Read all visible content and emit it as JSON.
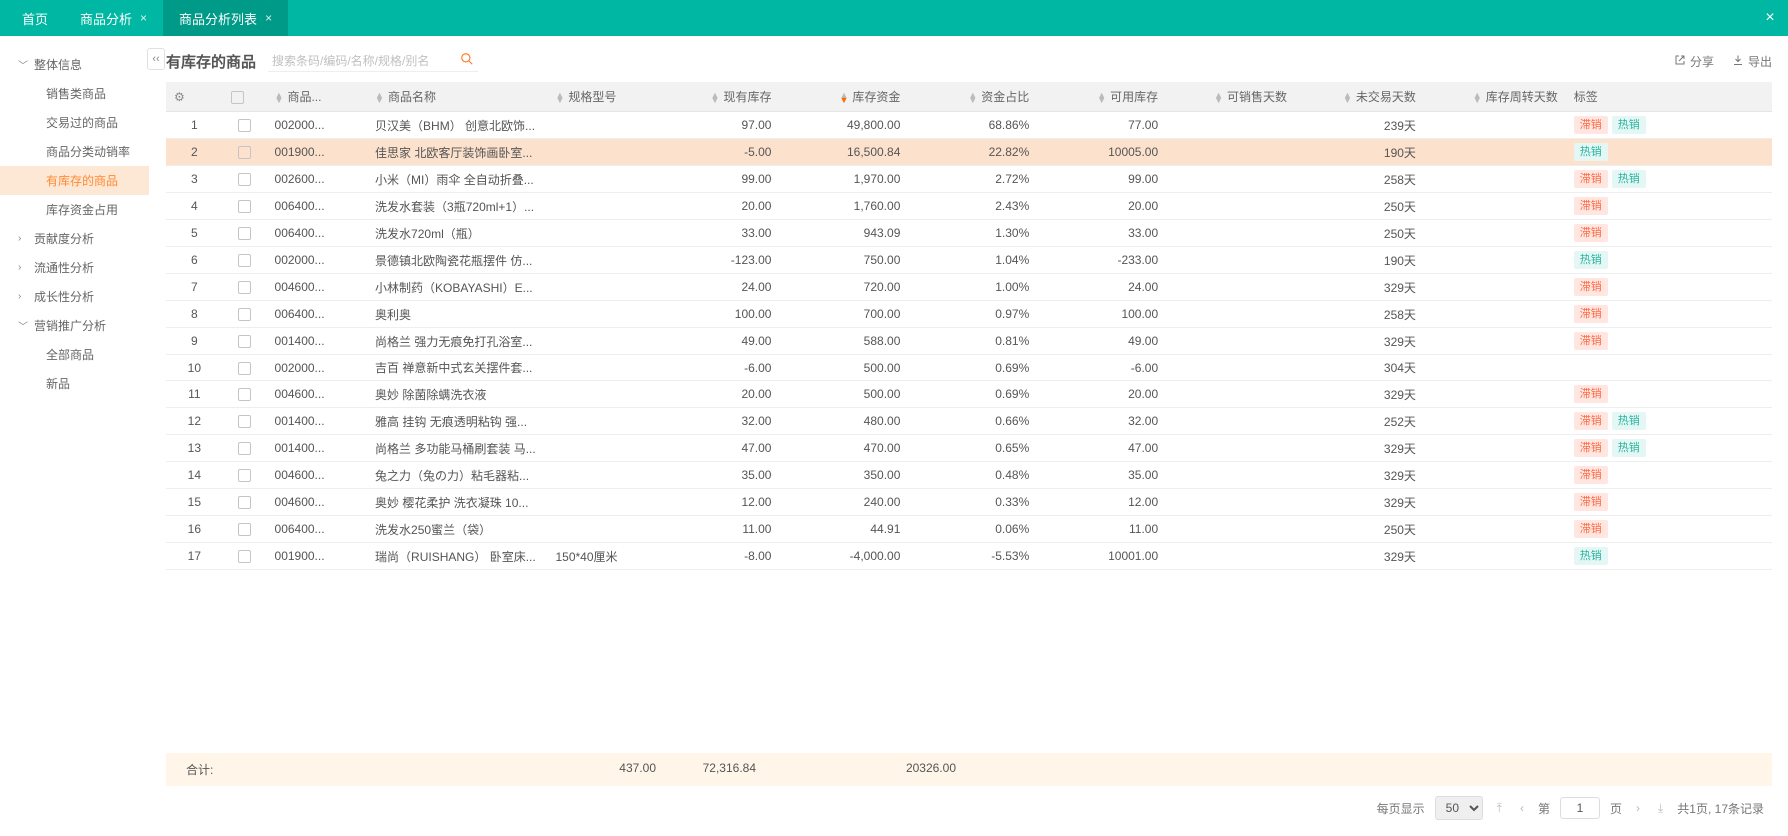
{
  "colors": {
    "primary": "#00b7a3",
    "primary_dark": "#009a88",
    "accent": "#ff8b33",
    "row_hl": "#fce1cc",
    "totals_bg": "#fff6e9"
  },
  "tabs": {
    "home": "首页",
    "items": [
      {
        "label": "商品分析",
        "active": false
      },
      {
        "label": "商品分析列表",
        "active": true
      }
    ]
  },
  "sidebar": {
    "groups": [
      {
        "label": "整体信息",
        "expanded": true,
        "items": [
          "销售类商品",
          "交易过的商品",
          "商品分类动销率",
          "有库存的商品",
          "库存资金占用"
        ],
        "active_index": 3
      },
      {
        "label": "贡献度分析",
        "expanded": false,
        "items": []
      },
      {
        "label": "流通性分析",
        "expanded": false,
        "items": []
      },
      {
        "label": "成长性分析",
        "expanded": false,
        "items": []
      },
      {
        "label": "营销推广分析",
        "expanded": true,
        "items": [
          "全部商品",
          "新品"
        ],
        "active_index": -1
      }
    ]
  },
  "header": {
    "title": "有库存的商品",
    "search_placeholder": "搜索条码/编码/名称/规格/别名",
    "share": "分享",
    "export": "导出"
  },
  "columns": [
    {
      "key": "idx",
      "label": "",
      "align": "center"
    },
    {
      "key": "chk",
      "label": "",
      "align": "center"
    },
    {
      "key": "code",
      "label": "商品...",
      "align": "left",
      "sortable": true
    },
    {
      "key": "name",
      "label": "商品名称",
      "align": "left",
      "sortable": true
    },
    {
      "key": "spec",
      "label": "规格型号",
      "align": "left",
      "sortable": true
    },
    {
      "key": "stock",
      "label": "现有库存",
      "align": "right",
      "sortable": true
    },
    {
      "key": "funds",
      "label": "库存资金",
      "align": "right",
      "sortable": true,
      "sorted_desc": true
    },
    {
      "key": "pct",
      "label": "资金占比",
      "align": "right",
      "sortable": true
    },
    {
      "key": "avail",
      "label": "可用库存",
      "align": "right",
      "sortable": true
    },
    {
      "key": "salesd",
      "label": "可销售天数",
      "align": "right",
      "sortable": true
    },
    {
      "key": "notrade",
      "label": "未交易天数",
      "align": "right",
      "sortable": true
    },
    {
      "key": "turns",
      "label": "库存周转天数",
      "align": "right",
      "sortable": true
    },
    {
      "key": "tags",
      "label": "标签",
      "align": "left"
    }
  ],
  "rows": [
    {
      "idx": 1,
      "code": "002000...",
      "name": "贝汉美（BHM） 创意北欧饰...",
      "spec": "",
      "stock": "97.00",
      "funds": "49,800.00",
      "pct": "68.86%",
      "avail": "77.00",
      "salesd": "",
      "notrade": "239天",
      "turns": "",
      "tags": [
        "stag",
        "hot"
      ]
    },
    {
      "idx": 2,
      "code": "001900...",
      "name": "佳思家 北欧客厅装饰画卧室...",
      "spec": "",
      "stock": "-5.00",
      "funds": "16,500.84",
      "pct": "22.82%",
      "avail": "10005.00",
      "salesd": "",
      "notrade": "190天",
      "turns": "",
      "tags": [
        "hot"
      ],
      "hl": true
    },
    {
      "idx": 3,
      "code": "002600...",
      "name": "小米（MI）雨伞 全自动折叠...",
      "spec": "",
      "stock": "99.00",
      "funds": "1,970.00",
      "pct": "2.72%",
      "avail": "99.00",
      "salesd": "",
      "notrade": "258天",
      "turns": "",
      "tags": [
        "stag",
        "hot"
      ]
    },
    {
      "idx": 4,
      "code": "006400...",
      "name": "洗发水套装（3瓶720ml+1）...",
      "spec": "",
      "stock": "20.00",
      "funds": "1,760.00",
      "pct": "2.43%",
      "avail": "20.00",
      "salesd": "",
      "notrade": "250天",
      "turns": "",
      "tags": [
        "stag"
      ]
    },
    {
      "idx": 5,
      "code": "006400...",
      "name": "洗发水720ml（瓶）",
      "spec": "",
      "stock": "33.00",
      "funds": "943.09",
      "pct": "1.30%",
      "avail": "33.00",
      "salesd": "",
      "notrade": "250天",
      "turns": "",
      "tags": [
        "stag"
      ]
    },
    {
      "idx": 6,
      "code": "002000...",
      "name": "景德镇北欧陶瓷花瓶摆件 仿...",
      "spec": "",
      "stock": "-123.00",
      "funds": "750.00",
      "pct": "1.04%",
      "avail": "-233.00",
      "salesd": "",
      "notrade": "190天",
      "turns": "",
      "tags": [
        "hot"
      ]
    },
    {
      "idx": 7,
      "code": "004600...",
      "name": "小林制药（KOBAYASHI）E...",
      "spec": "",
      "stock": "24.00",
      "funds": "720.00",
      "pct": "1.00%",
      "avail": "24.00",
      "salesd": "",
      "notrade": "329天",
      "turns": "",
      "tags": [
        "stag"
      ]
    },
    {
      "idx": 8,
      "code": "006400...",
      "name": "奥利奥",
      "spec": "",
      "stock": "100.00",
      "funds": "700.00",
      "pct": "0.97%",
      "avail": "100.00",
      "salesd": "",
      "notrade": "258天",
      "turns": "",
      "tags": [
        "stag"
      ]
    },
    {
      "idx": 9,
      "code": "001400...",
      "name": "尚格兰 强力无痕免打孔浴室...",
      "spec": "",
      "stock": "49.00",
      "funds": "588.00",
      "pct": "0.81%",
      "avail": "49.00",
      "salesd": "",
      "notrade": "329天",
      "turns": "",
      "tags": [
        "stag"
      ]
    },
    {
      "idx": 10,
      "code": "002000...",
      "name": "吉百 禅意新中式玄关摆件套...",
      "spec": "",
      "stock": "-6.00",
      "funds": "500.00",
      "pct": "0.69%",
      "avail": "-6.00",
      "salesd": "",
      "notrade": "304天",
      "turns": "",
      "tags": []
    },
    {
      "idx": 11,
      "code": "004600...",
      "name": "奥妙 除菌除螨洗衣液",
      "spec": "",
      "stock": "20.00",
      "funds": "500.00",
      "pct": "0.69%",
      "avail": "20.00",
      "salesd": "",
      "notrade": "329天",
      "turns": "",
      "tags": [
        "stag"
      ]
    },
    {
      "idx": 12,
      "code": "001400...",
      "name": "雅高 挂钩 无痕透明粘钩 强...",
      "spec": "",
      "stock": "32.00",
      "funds": "480.00",
      "pct": "0.66%",
      "avail": "32.00",
      "salesd": "",
      "notrade": "252天",
      "turns": "",
      "tags": [
        "stag",
        "hot"
      ]
    },
    {
      "idx": 13,
      "code": "001400...",
      "name": "尚格兰 多功能马桶刷套装 马...",
      "spec": "",
      "stock": "47.00",
      "funds": "470.00",
      "pct": "0.65%",
      "avail": "47.00",
      "salesd": "",
      "notrade": "329天",
      "turns": "",
      "tags": [
        "stag",
        "hot"
      ]
    },
    {
      "idx": 14,
      "code": "004600...",
      "name": "兔之力（兔の力）粘毛器粘...",
      "spec": "",
      "stock": "35.00",
      "funds": "350.00",
      "pct": "0.48%",
      "avail": "35.00",
      "salesd": "",
      "notrade": "329天",
      "turns": "",
      "tags": [
        "stag"
      ]
    },
    {
      "idx": 15,
      "code": "004600...",
      "name": "奥妙 樱花柔护 洗衣凝珠 10...",
      "spec": "",
      "stock": "12.00",
      "funds": "240.00",
      "pct": "0.33%",
      "avail": "12.00",
      "salesd": "",
      "notrade": "329天",
      "turns": "",
      "tags": [
        "stag"
      ]
    },
    {
      "idx": 16,
      "code": "006400...",
      "name": "洗发水250蜜兰（袋）",
      "spec": "",
      "stock": "11.00",
      "funds": "44.91",
      "pct": "0.06%",
      "avail": "11.00",
      "salesd": "",
      "notrade": "250天",
      "turns": "",
      "tags": [
        "stag"
      ]
    },
    {
      "idx": 17,
      "code": "001900...",
      "name": "瑞尚（RUISHANG） 卧室床...",
      "spec": "150*40厘米",
      "stock": "-8.00",
      "funds": "-4,000.00",
      "pct": "-5.53%",
      "avail": "10001.00",
      "salesd": "",
      "notrade": "329天",
      "turns": "",
      "tags": [
        "hot"
      ]
    }
  ],
  "tag_labels": {
    "hot": "热销",
    "stag": "滞销"
  },
  "totals": {
    "label": "合计:",
    "stock": "437.00",
    "funds": "72,316.84",
    "avail": "20326.00"
  },
  "pager": {
    "per_page_label": "每页显示",
    "per_page_value": "50",
    "page_prefix": "第",
    "page_value": "1",
    "page_suffix": "页",
    "summary": "共1页, 17条记录"
  }
}
